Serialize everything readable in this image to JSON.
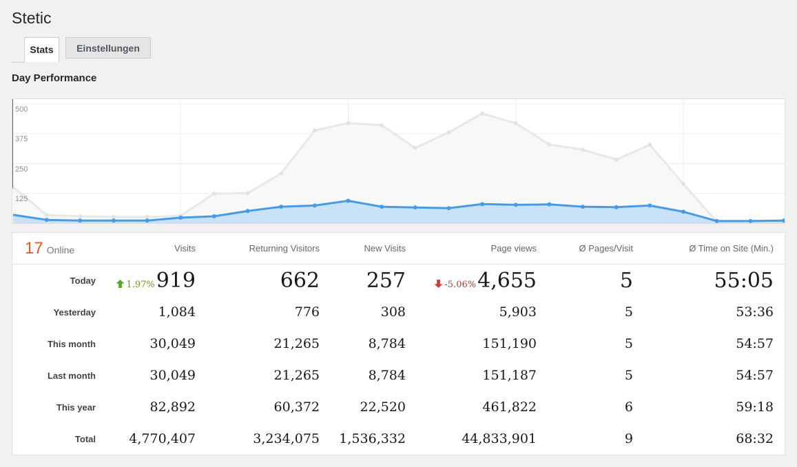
{
  "header": {
    "title": "Stetic"
  },
  "tabs": [
    {
      "label": "Stats",
      "active": true
    },
    {
      "label": "Einstellungen",
      "active": false
    }
  ],
  "chart": {
    "title": "Day Performance"
  },
  "chart_data": {
    "type": "area",
    "title": "Day Performance",
    "x": [
      0,
      1,
      2,
      3,
      4,
      5,
      6,
      7,
      8,
      9,
      10,
      11,
      12,
      13,
      14,
      15,
      16,
      17,
      18,
      19,
      20,
      21,
      22,
      23
    ],
    "series": [
      {
        "name": "Page views",
        "color": "#e8e8e8",
        "fill": "#f8f8f8",
        "dot": "#e3e3e3",
        "values": [
          152,
          34,
          29,
          26,
          26,
          31,
          124,
          126,
          209,
          389,
          420,
          411,
          316,
          381,
          460,
          419,
          330,
          308,
          267,
          329,
          165,
          6,
          6,
          6
        ]
      },
      {
        "name": "Visits",
        "color": "#479be5",
        "fill": "#cae2f7",
        "dot": "#479be5",
        "values": [
          35,
          14,
          11,
          11,
          11,
          23,
          29,
          51,
          69,
          74,
          94,
          69,
          66,
          63,
          80,
          77,
          79,
          69,
          67,
          74,
          48,
          9,
          9,
          11
        ]
      }
    ],
    "yticks": [
      500,
      375,
      250,
      125
    ],
    "ylim": [
      0,
      520
    ],
    "grid": true,
    "legend": "none",
    "x_tick_labels": "none",
    "gridline_every_x": 5
  },
  "colors": {
    "accent_orange": "#dc5a21",
    "delta_up_arrow": "#58a729",
    "delta_up_text": "#6c941f",
    "delta_down_arrow": "#c04437",
    "delta_down_text": "#a04040"
  },
  "table": {
    "online": {
      "count": "17",
      "label": "Online"
    },
    "columns": [
      "Visits",
      "Returning Visitors",
      "New Visits",
      "Page views",
      "Ø Pages/Visit",
      "Ø Time on Site (Min.)"
    ],
    "rows": [
      {
        "label": "Today",
        "big": true,
        "visits": "919",
        "visits_delta": "1.97%",
        "visits_delta_dir": "up",
        "returning": "662",
        "new_visits": "257",
        "pageviews": "4,655",
        "pageviews_delta": "-5.06%",
        "pageviews_delta_dir": "down",
        "pages_per_visit": "5",
        "time_on_site": "55:05"
      },
      {
        "label": "Yesterday",
        "visits": "1,084",
        "returning": "776",
        "new_visits": "308",
        "pageviews": "5,903",
        "pages_per_visit": "5",
        "time_on_site": "53:36"
      },
      {
        "label": "This month",
        "visits": "30,049",
        "returning": "21,265",
        "new_visits": "8,784",
        "pageviews": "151,190",
        "pages_per_visit": "5",
        "time_on_site": "54:57"
      },
      {
        "label": "Last month",
        "visits": "30,049",
        "returning": "21,265",
        "new_visits": "8,784",
        "pageviews": "151,187",
        "pages_per_visit": "5",
        "time_on_site": "54:57"
      },
      {
        "label": "This year",
        "visits": "82,892",
        "returning": "60,372",
        "new_visits": "22,520",
        "pageviews": "461,822",
        "pages_per_visit": "6",
        "time_on_site": "59:18"
      },
      {
        "label": "Total",
        "visits": "4,770,407",
        "returning": "3,234,075",
        "new_visits": "1,536,332",
        "pageviews": "44,833,901",
        "pages_per_visit": "9",
        "time_on_site": "68:32"
      }
    ]
  }
}
